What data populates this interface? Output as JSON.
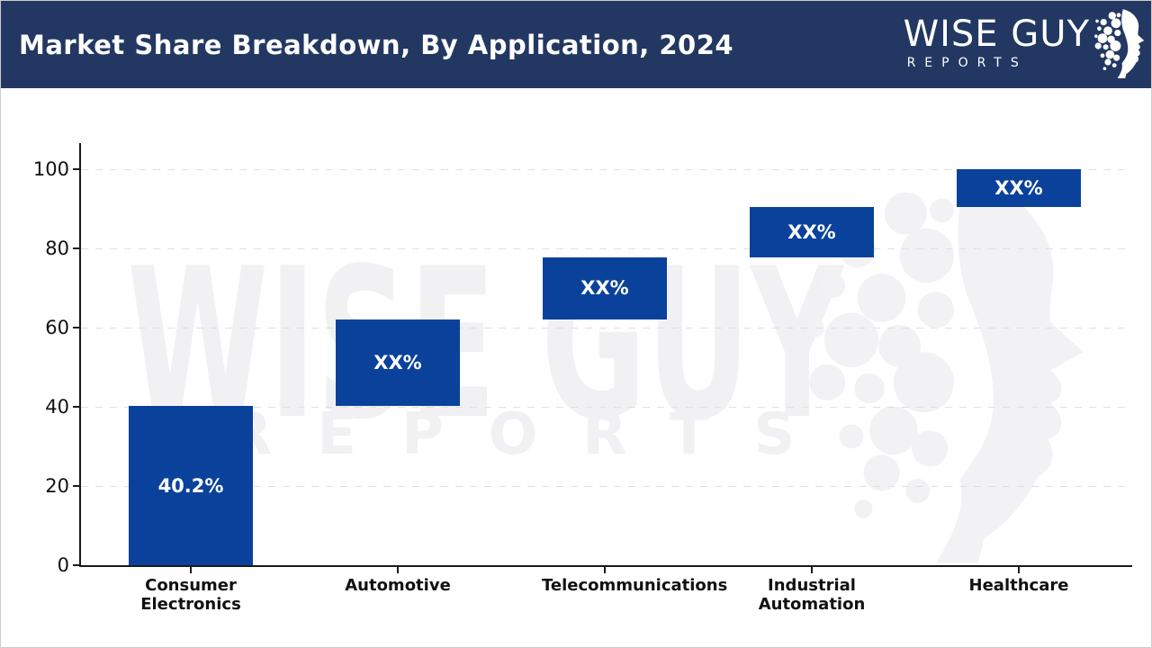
{
  "header": {
    "title": "Market Share Breakdown, By Application, 2024",
    "logo": {
      "brand": "WISE GUY",
      "sub": "REPORTS"
    }
  },
  "watermark": {
    "brand": "WISE GUY",
    "sub": "REPORTS"
  },
  "colors": {
    "header_bg": "#223862",
    "bar_fill": "#0a429b",
    "grid": "#e0e0e0",
    "axis": "#1a1a1a",
    "watermark": "#f1f1f4"
  },
  "chart_data": {
    "type": "bar",
    "subtype": "waterfall (floating cumulative market-share bars)",
    "title": "Market Share Breakdown, By Application, 2024",
    "xlabel": "",
    "ylabel": "",
    "ylim": [
      0,
      100
    ],
    "yticks": [
      0,
      20,
      40,
      60,
      80,
      100
    ],
    "grid": "horizontal dashed",
    "legend": "none",
    "categories": [
      "Consumer Electronics",
      "Automotive",
      "Telecommunications",
      "Industrial Automation",
      "Healthcare"
    ],
    "bars": [
      {
        "category": "Consumer Electronics",
        "label": "40.2%",
        "start": 0,
        "end": 40.2,
        "segment_value": 40.2
      },
      {
        "category": "Automotive",
        "label": "XX%",
        "start": 40.2,
        "end": 62.0,
        "segment_value": 21.8
      },
      {
        "category": "Telecommunications",
        "label": "XX%",
        "start": 62.0,
        "end": 77.8,
        "segment_value": 15.8
      },
      {
        "category": "Industrial Automation",
        "label": "XX%",
        "start": 77.8,
        "end": 90.4,
        "segment_value": 12.6
      },
      {
        "category": "Healthcare",
        "label": "XX%",
        "start": 90.4,
        "end": 100,
        "segment_value": 9.6
      }
    ]
  }
}
